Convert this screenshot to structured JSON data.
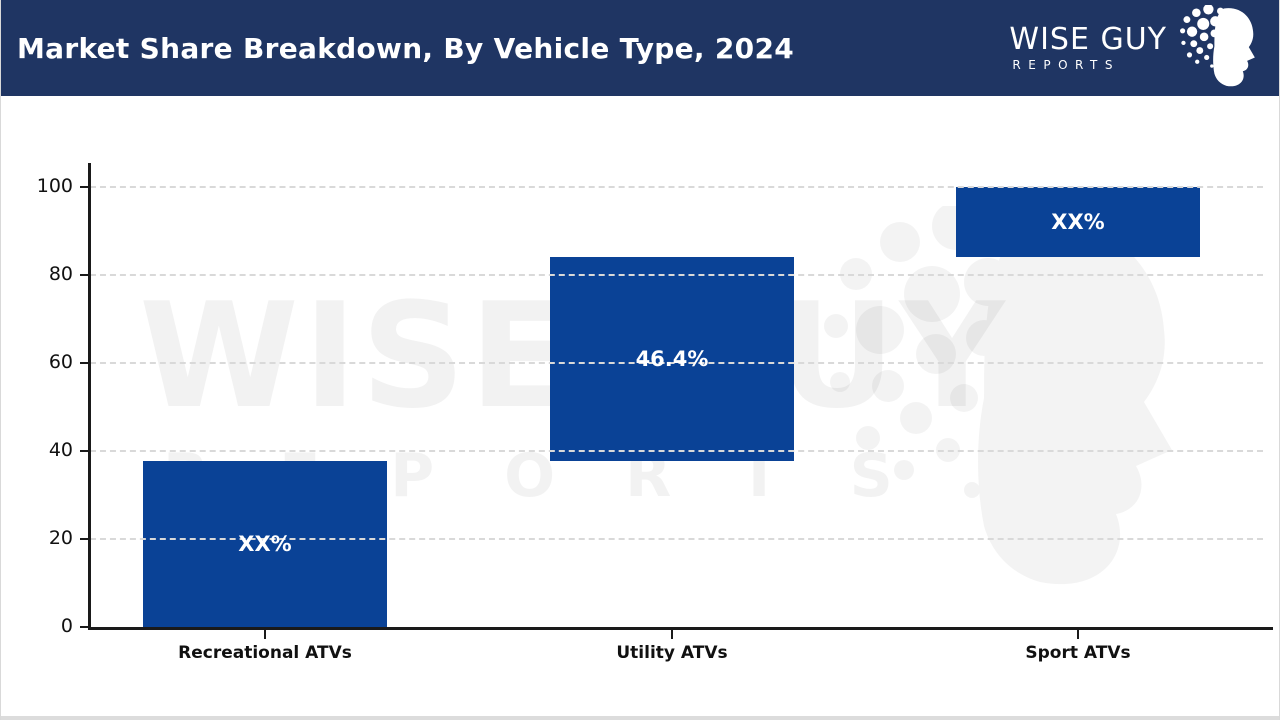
{
  "header": {
    "title": "Market Share Breakdown, By Vehicle Type, 2024",
    "logo": {
      "brand": "WISE GUY",
      "sub": "REPORTS"
    },
    "bg_color": "#1f3563"
  },
  "watermark": {
    "brand": "WISE GUY",
    "sub": "REPORTS"
  },
  "chart_data": {
    "type": "bar",
    "subtype": "waterfall-floating-bars",
    "title": "",
    "xlabel": "",
    "ylabel": "",
    "categories": [
      "Recreational ATVs",
      "Utility ATVs",
      "Sport ATVs"
    ],
    "series": [
      {
        "name": "Market Share (%)",
        "segments": [
          {
            "start": 0,
            "end": 37.7
          },
          {
            "start": 37.7,
            "end": 84.1
          },
          {
            "start": 84.1,
            "end": 100
          }
        ]
      }
    ],
    "value_labels": [
      "XX%",
      "46.4%",
      "XX%"
    ],
    "ylim": [
      0,
      100
    ],
    "yticks": [
      0,
      20,
      40,
      60,
      80,
      100
    ],
    "grid": "horizontal-dashed",
    "legend": "none",
    "bar_color": "#0a4296",
    "grid_color": "#d9d9d9",
    "axis_color": "#1a1a1a"
  }
}
